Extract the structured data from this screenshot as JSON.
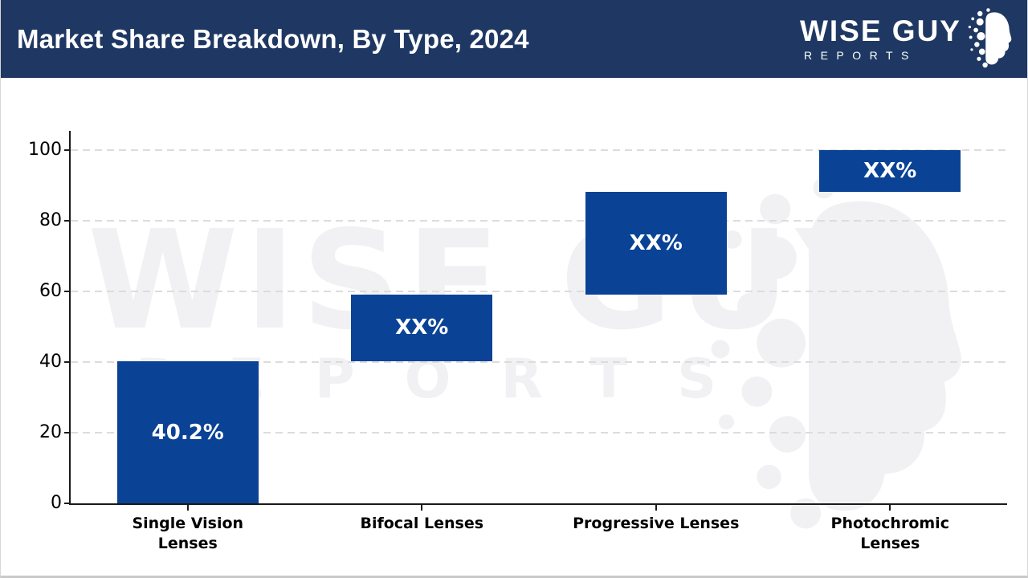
{
  "header": {
    "logo": {
      "wordmark": "WISE GUY",
      "subtitle": "REPORTS"
    }
  },
  "watermark": {
    "wordmark": "WISE GUY",
    "subtitle": "REPORTS"
  },
  "colors": {
    "header_bg": "#1f3863",
    "title_text": "#ffffff",
    "bar": "#0a4296",
    "bar_label": "#ffffff",
    "grid": "#dcdcdc",
    "axis": "#1a1a1a",
    "tick_text": "#000000",
    "watermark": "#f1f1f4",
    "page_border": "#c9c9c9"
  },
  "chart_data": {
    "type": "bar",
    "subtype": "waterfall",
    "title": "Market Share Breakdown, By Type, 2024",
    "xlabel": "",
    "ylabel": "",
    "ylim": [
      0,
      105
    ],
    "yticks": [
      0,
      20,
      40,
      60,
      80,
      100
    ],
    "grid": "horizontal-dashed",
    "legend": "none",
    "categories": [
      "Single Vision Lenses",
      "Bifocal Lenses",
      "Progressive Lenses",
      "Photochromic Lenses"
    ],
    "category_lines": [
      [
        "Single Vision",
        "Lenses"
      ],
      [
        "Bifocal Lenses"
      ],
      [
        "Progressive Lenses"
      ],
      [
        "Photochromic",
        "Lenses"
      ]
    ],
    "segments": [
      {
        "category": "Single Vision Lenses",
        "start": 0,
        "end": 40.2,
        "label": "40.2%"
      },
      {
        "category": "Bifocal Lenses",
        "start": 40.2,
        "end": 59.2,
        "label": "XX%"
      },
      {
        "category": "Progressive Lenses",
        "start": 59.2,
        "end": 88.2,
        "label": "XX%"
      },
      {
        "category": "Photochromic Lenses",
        "start": 88.2,
        "end": 100,
        "label": "XX%"
      }
    ]
  }
}
